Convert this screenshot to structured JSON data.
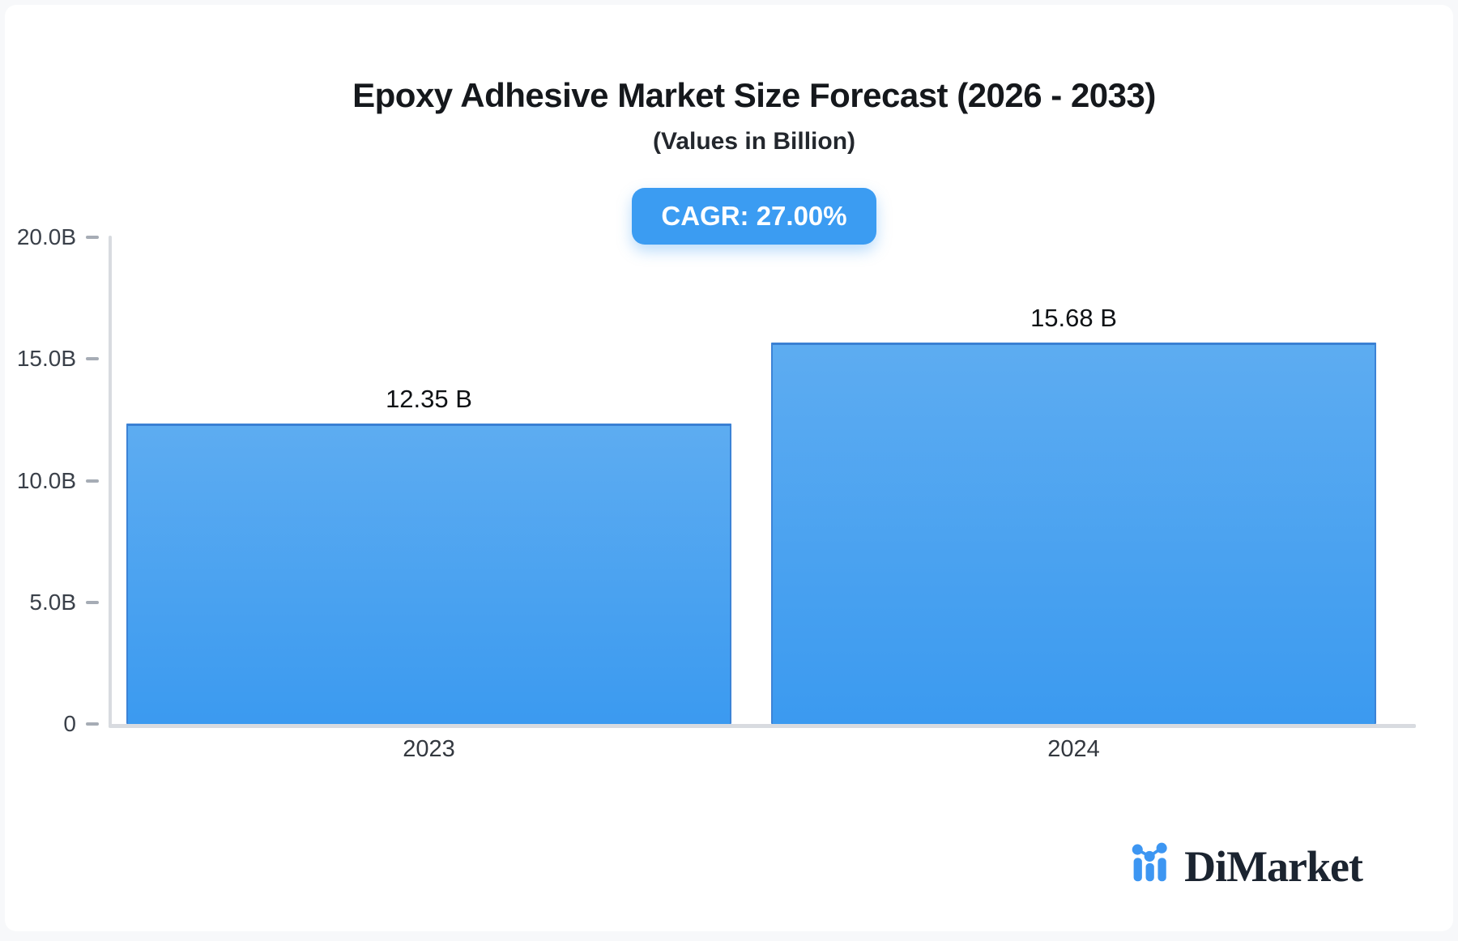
{
  "header": {
    "title": "Epoxy Adhesive Market Size Forecast (2026 - 2033)",
    "subtitle": "(Values in Billion)",
    "cagr_badge": "CAGR: 27.00%"
  },
  "chart_data": {
    "type": "bar",
    "title": "Epoxy Adhesive Market Size Forecast (2026 - 2033)",
    "subtitle": "(Values in Billion)",
    "annotation": "CAGR: 27.00%",
    "categories": [
      "2023",
      "2024"
    ],
    "values": [
      12.35,
      15.68
    ],
    "value_labels": [
      "12.35 B",
      "15.68 B"
    ],
    "unit": "Billion",
    "ylim": [
      0,
      20
    ],
    "yticks": [
      {
        "value": 20,
        "label": "20.0B"
      },
      {
        "value": 15,
        "label": "15.0B"
      },
      {
        "value": 10,
        "label": "10.0B"
      },
      {
        "value": 5,
        "label": "5.0B"
      },
      {
        "value": 0,
        "label": "0"
      }
    ],
    "grid": false,
    "legend": false
  },
  "colors": {
    "accent_blue": "#3b9cf2",
    "bar_gradient_top": "#5dacf1",
    "bar_gradient_bottom": "#3b9af0",
    "bar_border": "#3c83d6",
    "axis_line": "#d8dbe0",
    "tick_text": "#3a4049",
    "logo_blue": "#3d96f2",
    "logo_navy": "#1b2430"
  },
  "branding": {
    "logo_text": "DiMarket"
  }
}
